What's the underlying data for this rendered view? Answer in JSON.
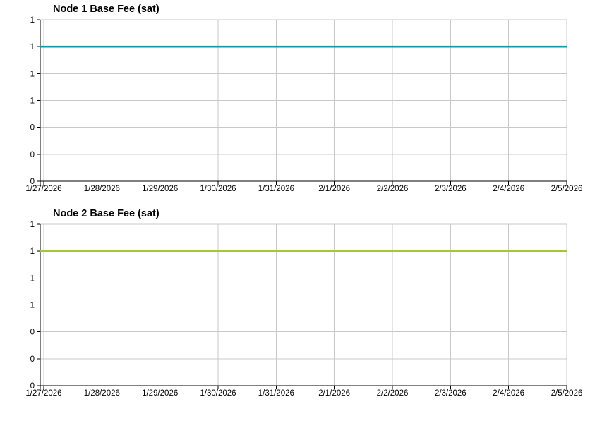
{
  "page": {
    "background_color": "#ffffff",
    "grid_color": "#c8c8c8",
    "axis_color": "#000000",
    "text_color": "#000000"
  },
  "chart_data": [
    {
      "type": "line",
      "title": "Node 1 Base Fee (sat)",
      "xlabel": "",
      "ylabel": "",
      "x": [
        "1/27/2026",
        "1/28/2026",
        "1/29/2026",
        "1/30/2026",
        "1/31/2026",
        "2/1/2026",
        "2/2/2026",
        "2/3/2026",
        "2/4/2026",
        "2/5/2026"
      ],
      "series": [
        {
          "name": "Node 1 Base Fee",
          "values": [
            1,
            1,
            1,
            1,
            1,
            1,
            1,
            1,
            1,
            1
          ],
          "color": "#139aa2"
        }
      ],
      "ylim": [
        0,
        1.2
      ],
      "y_ticks": [
        {
          "value": 1.2,
          "label": "1"
        },
        {
          "value": 1.0,
          "label": "1"
        },
        {
          "value": 0.8,
          "label": "1"
        },
        {
          "value": 0.6,
          "label": "1"
        },
        {
          "value": 0.4,
          "label": "0"
        },
        {
          "value": 0.2,
          "label": "0"
        },
        {
          "value": 0.0,
          "label": "0"
        }
      ],
      "grid": true,
      "legend_position": "none"
    },
    {
      "type": "line",
      "title": "Node 2 Base Fee (sat)",
      "xlabel": "",
      "ylabel": "",
      "x": [
        "1/27/2026",
        "1/28/2026",
        "1/29/2026",
        "1/30/2026",
        "1/31/2026",
        "2/1/2026",
        "2/2/2026",
        "2/3/2026",
        "2/4/2026",
        "2/5/2026"
      ],
      "series": [
        {
          "name": "Node 2 Base Fee",
          "values": [
            1,
            1,
            1,
            1,
            1,
            1,
            1,
            1,
            1,
            1
          ],
          "color": "#a1c83c"
        }
      ],
      "ylim": [
        0,
        1.2
      ],
      "y_ticks": [
        {
          "value": 1.2,
          "label": "1"
        },
        {
          "value": 1.0,
          "label": "1"
        },
        {
          "value": 0.8,
          "label": "1"
        },
        {
          "value": 0.6,
          "label": "1"
        },
        {
          "value": 0.4,
          "label": "0"
        },
        {
          "value": 0.2,
          "label": "0"
        },
        {
          "value": 0.0,
          "label": "0"
        }
      ],
      "grid": true,
      "legend_position": "none"
    }
  ]
}
